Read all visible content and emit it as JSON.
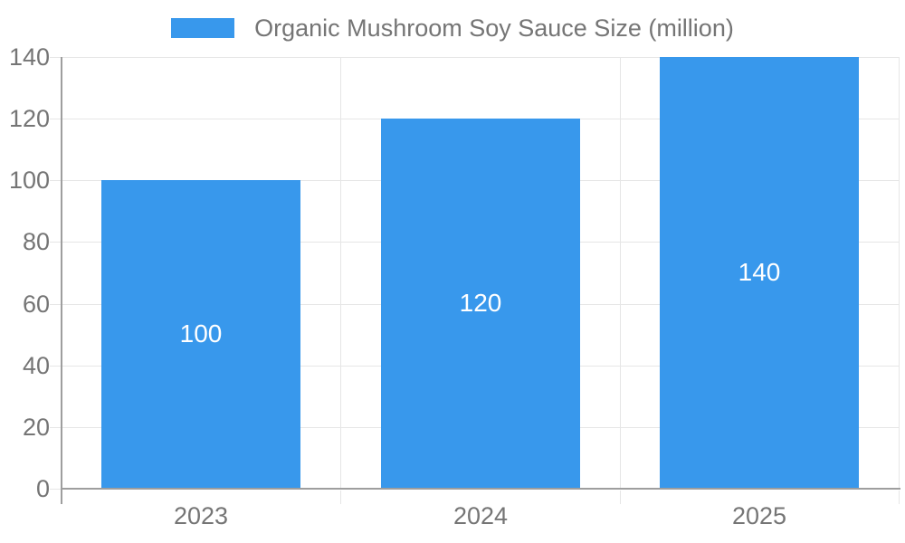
{
  "chart_data": {
    "type": "bar",
    "title": "Organic Mushroom Soy Sauce Size (million)",
    "series_name": "Organic Mushroom Soy Sauce Size (million)",
    "categories": [
      "2023",
      "2024",
      "2025"
    ],
    "values": [
      100,
      120,
      140
    ],
    "data_labels": [
      "100",
      "120",
      "140"
    ],
    "xlabel": "",
    "ylabel": "",
    "ylim": [
      0,
      140
    ],
    "yticks": [
      0,
      20,
      40,
      60,
      80,
      100,
      120,
      140
    ],
    "grid": true,
    "legend_position": "top",
    "colors": {
      "bar": "#3898ec",
      "bar_label": "#ffffff",
      "axis": "#9e9e9e",
      "grid": "#e6e6e6",
      "text": "#757575",
      "background": "#ffffff"
    }
  },
  "legend": {
    "label": "Organic Mushroom Soy Sauce Size (million)"
  }
}
